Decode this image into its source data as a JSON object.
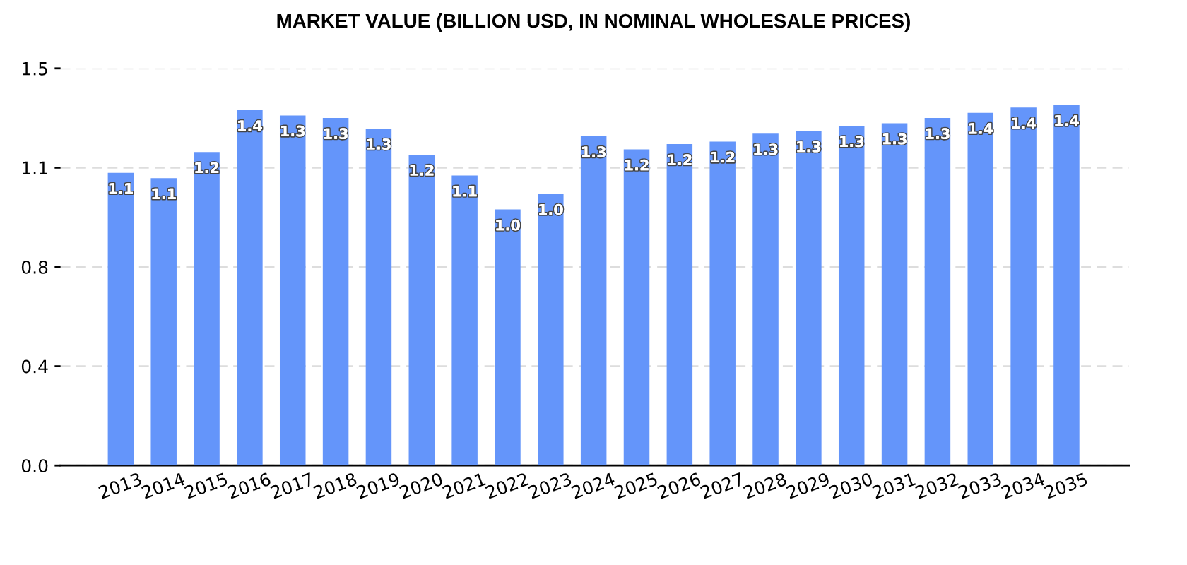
{
  "chart_data": {
    "type": "bar",
    "title": "MARKET VALUE (BILLION USD, IN NOMINAL WHOLESALE PRICES)",
    "categories": [
      "2013",
      "2014",
      "2015",
      "2016",
      "2017",
      "2018",
      "2019",
      "2020",
      "2021",
      "2022",
      "2023",
      "2024",
      "2025",
      "2026",
      "2027",
      "2028",
      "2029",
      "2030",
      "2031",
      "2032",
      "2033",
      "2034",
      "2035"
    ],
    "values": [
      1.12,
      1.1,
      1.2,
      1.36,
      1.34,
      1.33,
      1.29,
      1.19,
      1.11,
      0.98,
      1.04,
      1.26,
      1.21,
      1.23,
      1.24,
      1.27,
      1.28,
      1.3,
      1.31,
      1.33,
      1.35,
      1.37,
      1.38
    ],
    "value_labels": [
      "1.1",
      "1.1",
      "1.2",
      "1.4",
      "1.3",
      "1.3",
      "1.3",
      "1.2",
      "1.1",
      "1.0",
      "1.0",
      "1.3",
      "1.2",
      "1.2",
      "1.2",
      "1.3",
      "1.3",
      "1.3",
      "1.3",
      "1.3",
      "1.4",
      "1.4",
      "1.4"
    ],
    "color": "#6495fa",
    "ylim": [
      0,
      1.52
    ],
    "yticks": [
      {
        "value": 0,
        "label": "0.0"
      },
      {
        "value": 0.38,
        "label": "0.4"
      },
      {
        "value": 0.76,
        "label": "0.8"
      },
      {
        "value": 1.14,
        "label": "1.1"
      },
      {
        "value": 1.52,
        "label": "1.5"
      }
    ],
    "grid": "y"
  }
}
